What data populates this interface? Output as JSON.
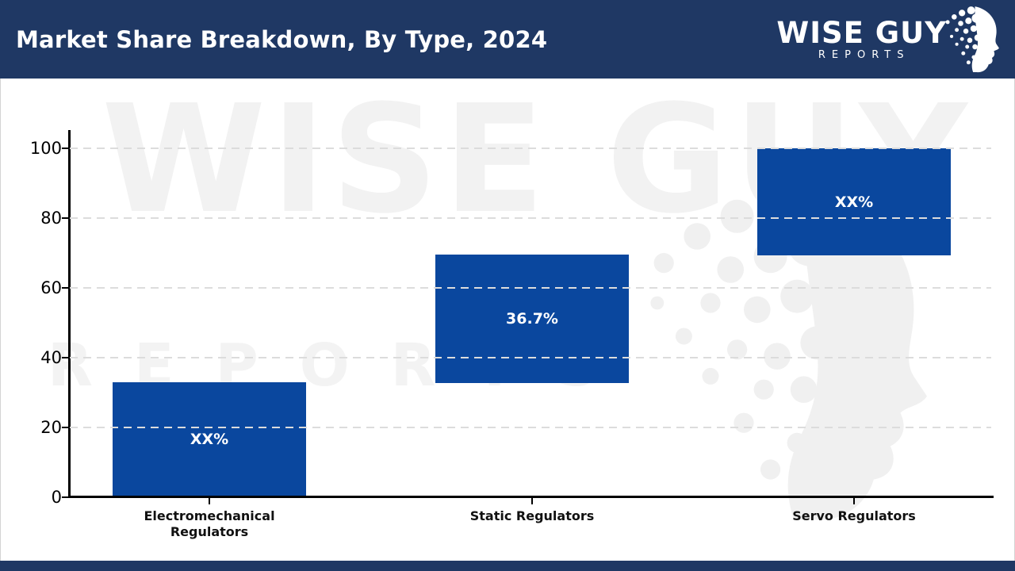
{
  "header": {
    "title": "Market Share Breakdown, By Type, 2024",
    "bg_color": "#1f3864",
    "logo": {
      "line1": "WISE GUY",
      "line2": "REPORTS",
      "icon": "dotted-face-profile-icon"
    }
  },
  "watermark": {
    "line1": "WISE GUY",
    "line2": "REPORTS"
  },
  "chart_data": {
    "type": "bar",
    "subtype": "floating-segment-waterfall",
    "title": "Market Share Breakdown, By Type, 2024",
    "categories": [
      "Electromechanical Regulators",
      "Static Regulators",
      "Servo Regulators"
    ],
    "segments": [
      {
        "category": "Electromechanical Regulators",
        "from": 0,
        "to": 33,
        "label": "XX%"
      },
      {
        "category": "Static Regulators",
        "from": 32.8,
        "to": 69.5,
        "label": "36.7%"
      },
      {
        "category": "Servo Regulators",
        "from": 69.3,
        "to": 100,
        "label": "XX%"
      }
    ],
    "yticks": [
      0,
      20,
      40,
      60,
      80,
      100
    ],
    "ylim": [
      0,
      105
    ],
    "xlabel": "",
    "ylabel": "",
    "legend": "none",
    "grid": "dashed-horizontal-over-bars",
    "bar_color": "#0a479e",
    "gridline_color": "#dcdcdc",
    "axis_color": "#000000"
  },
  "footer": {
    "bg_color": "#1f3864"
  }
}
